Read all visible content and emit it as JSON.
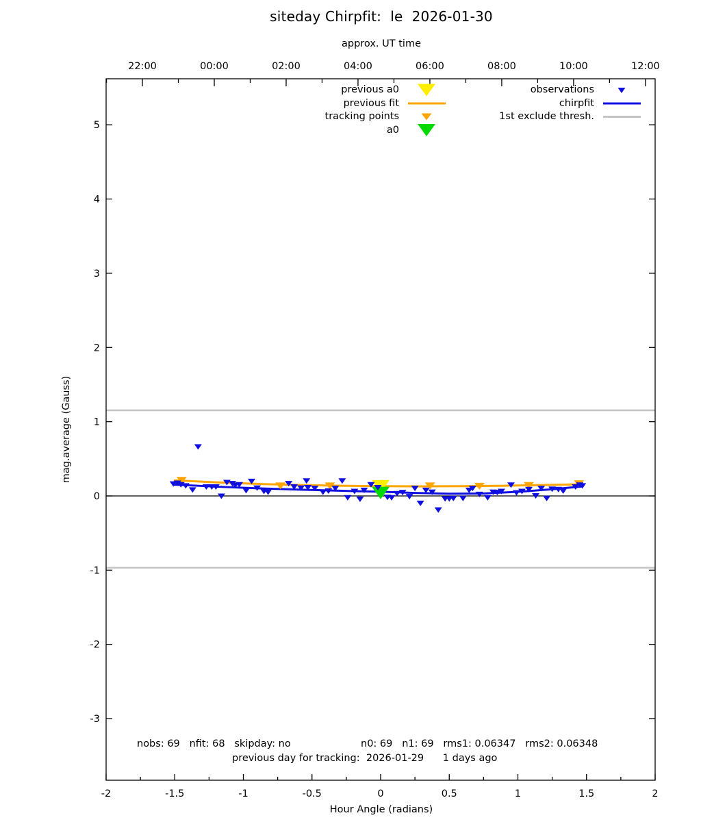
{
  "title": "siteday Chirpfit:  le  2026-01-30",
  "top_axis": {
    "label": "approx. UT time"
  },
  "x_axis": {
    "label": "Hour Angle (radians)"
  },
  "y_axis": {
    "label": "mag.average (Gauss)"
  },
  "legend": {
    "left": [
      {
        "label": "previous a0",
        "key": "triangle-large",
        "color": "#ffee00"
      },
      {
        "label": "previous fit",
        "key": "line",
        "color": "#ffa500"
      },
      {
        "label": "tracking points",
        "key": "triangle-medium",
        "color": "#ffa500"
      },
      {
        "label": "a0",
        "key": "triangle-large",
        "color": "#00d900"
      }
    ],
    "right": [
      {
        "label": "observations",
        "key": "triangle-small",
        "color": "#0f0fe0"
      },
      {
        "label": "chirpfit",
        "key": "line",
        "color": "#0f0fe0"
      },
      {
        "label": "1st exclude thresh.",
        "key": "line",
        "color": "#c4c4c4"
      }
    ]
  },
  "stats": {
    "nobs": "69",
    "nfit": "68",
    "skipday": "no",
    "n0": "69",
    "n1": "69",
    "rms1": "0.06347",
    "rms2": "0.06348",
    "previous_day_for_tracking": "2026-01-29",
    "days_ago": "1 days ago",
    "line1_left": "nobs: 69   nfit: 68   skipday: no",
    "line1_right": "n0: 69   n1: 69   rms1: 0.06347   rms2: 0.06348",
    "line2": "previous day for tracking:  2026-01-29      1 days ago"
  },
  "colors": {
    "observations": "#0f0fe0",
    "chirpfit": "#0f0fe0",
    "previous_fit": "#ffa500",
    "tracking_points": "#ffa500",
    "previous_a0": "#ffee00",
    "a0": "#00d900",
    "exclude_threshold": "#c4c4c4",
    "zero_line": "#000000",
    "frame": "#000000"
  },
  "chart_data": {
    "type": "scatter",
    "title": "siteday Chirpfit:  le  2026-01-30",
    "xlabel": "Hour Angle (radians)",
    "x2label": "approx. UT time",
    "ylabel": "mag.average (Gauss)",
    "xlim": [
      -2,
      2
    ],
    "ylim": [
      -3.83,
      5.62
    ],
    "grid": false,
    "legend_position": "top-inside",
    "x_ticks": [
      {
        "v": -2,
        "label": "-2"
      },
      {
        "v": -1.5,
        "label": "-1.5"
      },
      {
        "v": -1,
        "label": "-1"
      },
      {
        "v": -0.5,
        "label": "-0.5"
      },
      {
        "v": 0,
        "label": "0"
      },
      {
        "v": 0.5,
        "label": "0.5"
      },
      {
        "v": 1,
        "label": "1"
      },
      {
        "v": 1.5,
        "label": "1.5"
      },
      {
        "v": 2,
        "label": "2"
      }
    ],
    "x_minor_ticks": [
      -1.75,
      -1.25,
      -0.75,
      -0.25,
      0.25,
      0.75,
      1.25,
      1.75
    ],
    "x2_ticks": [
      {
        "v": -1.7356,
        "label": "22:00"
      },
      {
        "v": -1.212,
        "label": "00:00"
      },
      {
        "v": -0.6884,
        "label": "02:00"
      },
      {
        "v": -0.1648,
        "label": "04:00"
      },
      {
        "v": 0.3588,
        "label": "06:00"
      },
      {
        "v": 0.8824,
        "label": "08:00"
      },
      {
        "v": 1.406,
        "label": "10:00"
      },
      {
        "v": 1.9296,
        "label": "12:00"
      }
    ],
    "x2_minor_ticks": [
      -1.9974,
      -1.4738,
      -0.9502,
      -0.4266,
      0.097,
      0.6206,
      1.1442,
      1.6678
    ],
    "y_ticks": [
      {
        "v": 5,
        "label": "5"
      },
      {
        "v": 4,
        "label": "4"
      },
      {
        "v": 3,
        "label": "3"
      },
      {
        "v": 2,
        "label": "2"
      },
      {
        "v": 1,
        "label": "1"
      },
      {
        "v": 0,
        "label": "0"
      },
      {
        "v": -1,
        "label": "-1"
      },
      {
        "v": -2,
        "label": "-2"
      },
      {
        "v": -3,
        "label": "-3"
      }
    ],
    "zero_line": 0,
    "exclude_thresholds": [
      1.153,
      -0.968
    ],
    "series": [
      {
        "name": "previous fit",
        "kind": "line",
        "color": "#ffa500",
        "width": 3,
        "points": [
          [
            -1.5,
            0.21
          ],
          [
            -1.2,
            0.183
          ],
          [
            -0.9,
            0.162
          ],
          [
            -0.6,
            0.147
          ],
          [
            -0.3,
            0.137
          ],
          [
            0,
            0.131
          ],
          [
            0.3,
            0.129
          ],
          [
            0.6,
            0.131
          ],
          [
            0.9,
            0.137
          ],
          [
            1.2,
            0.147
          ],
          [
            1.47,
            0.158
          ]
        ]
      },
      {
        "name": "chirpfit",
        "kind": "line",
        "color": "#0f0fe0",
        "width": 3,
        "points": [
          [
            -1.5,
            0.152
          ],
          [
            -1.2,
            0.125
          ],
          [
            -0.9,
            0.103
          ],
          [
            -0.6,
            0.085
          ],
          [
            -0.3,
            0.07
          ],
          [
            0,
            0.056
          ],
          [
            0.25,
            0.04
          ],
          [
            0.5,
            0.03
          ],
          [
            0.75,
            0.033
          ],
          [
            1.0,
            0.055
          ],
          [
            1.25,
            0.09
          ],
          [
            1.47,
            0.128
          ]
        ]
      },
      {
        "name": "previous a0",
        "kind": "scatter",
        "marker": "triangle-down",
        "size": "large",
        "color": "#ffee00",
        "points": [
          [
            0,
            0.13
          ]
        ]
      },
      {
        "name": "tracking points",
        "kind": "scatter",
        "marker": "triangle-down",
        "size": "medium",
        "color": "#ffa500",
        "points": [
          [
            -1.45,
            0.21
          ],
          [
            -0.73,
            0.135
          ],
          [
            -0.37,
            0.135
          ],
          [
            0.36,
            0.135
          ],
          [
            0.72,
            0.13
          ],
          [
            1.08,
            0.14
          ],
          [
            1.445,
            0.165
          ]
        ]
      },
      {
        "name": "a0",
        "kind": "scatter",
        "marker": "triangle-down",
        "size": "large",
        "color": "#00d900",
        "points": [
          [
            0,
            0.04
          ]
        ]
      },
      {
        "name": "observations",
        "kind": "scatter",
        "marker": "triangle-down",
        "size": "small",
        "color": "#0f0fe0",
        "points": [
          [
            -1.51,
            0.16
          ],
          [
            -1.48,
            0.17
          ],
          [
            -1.455,
            0.15
          ],
          [
            -1.42,
            0.135
          ],
          [
            -1.37,
            0.08
          ],
          [
            -1.33,
            0.66
          ],
          [
            -1.27,
            0.12
          ],
          [
            -1.23,
            0.12
          ],
          [
            -1.2,
            0.12
          ],
          [
            -1.16,
            -0.005
          ],
          [
            -1.12,
            0.18
          ],
          [
            -1.08,
            0.165
          ],
          [
            -1.06,
            0.14
          ],
          [
            -1.03,
            0.15
          ],
          [
            -0.98,
            0.07
          ],
          [
            -0.94,
            0.195
          ],
          [
            -0.9,
            0.105
          ],
          [
            -0.85,
            0.06
          ],
          [
            -0.82,
            0.05
          ],
          [
            -0.67,
            0.165
          ],
          [
            -0.63,
            0.12
          ],
          [
            -0.58,
            0.105
          ],
          [
            -0.54,
            0.2
          ],
          [
            -0.53,
            0.11
          ],
          [
            -0.48,
            0.1
          ],
          [
            -0.42,
            0.05
          ],
          [
            -0.38,
            0.065
          ],
          [
            -0.33,
            0.1
          ],
          [
            -0.28,
            0.2
          ],
          [
            -0.24,
            -0.025
          ],
          [
            -0.19,
            0.06
          ],
          [
            -0.15,
            -0.045
          ],
          [
            -0.12,
            0.075
          ],
          [
            -0.07,
            0.15
          ],
          [
            -0.02,
            0.11
          ],
          [
            0.05,
            -0.02
          ],
          [
            0.08,
            -0.025
          ],
          [
            0.12,
            0.03
          ],
          [
            0.16,
            0.045
          ],
          [
            0.21,
            -0.01
          ],
          [
            0.25,
            0.1
          ],
          [
            0.29,
            -0.1
          ],
          [
            0.33,
            0.075
          ],
          [
            0.375,
            0.05
          ],
          [
            0.42,
            -0.19
          ],
          [
            0.47,
            -0.04
          ],
          [
            0.5,
            -0.04
          ],
          [
            0.53,
            -0.035
          ],
          [
            0.6,
            -0.035
          ],
          [
            0.645,
            0.075
          ],
          [
            0.67,
            0.1
          ],
          [
            0.72,
            0.02
          ],
          [
            0.78,
            -0.025
          ],
          [
            0.82,
            0.05
          ],
          [
            0.85,
            0.045
          ],
          [
            0.88,
            0.06
          ],
          [
            0.95,
            0.145
          ],
          [
            0.99,
            0.04
          ],
          [
            1.03,
            0.06
          ],
          [
            1.08,
            0.085
          ],
          [
            1.13,
            0.0
          ],
          [
            1.17,
            0.1
          ],
          [
            1.21,
            -0.035
          ],
          [
            1.25,
            0.09
          ],
          [
            1.295,
            0.085
          ],
          [
            1.33,
            0.065
          ],
          [
            1.42,
            0.12
          ],
          [
            1.45,
            0.145
          ],
          [
            1.47,
            0.135
          ]
        ]
      }
    ]
  }
}
